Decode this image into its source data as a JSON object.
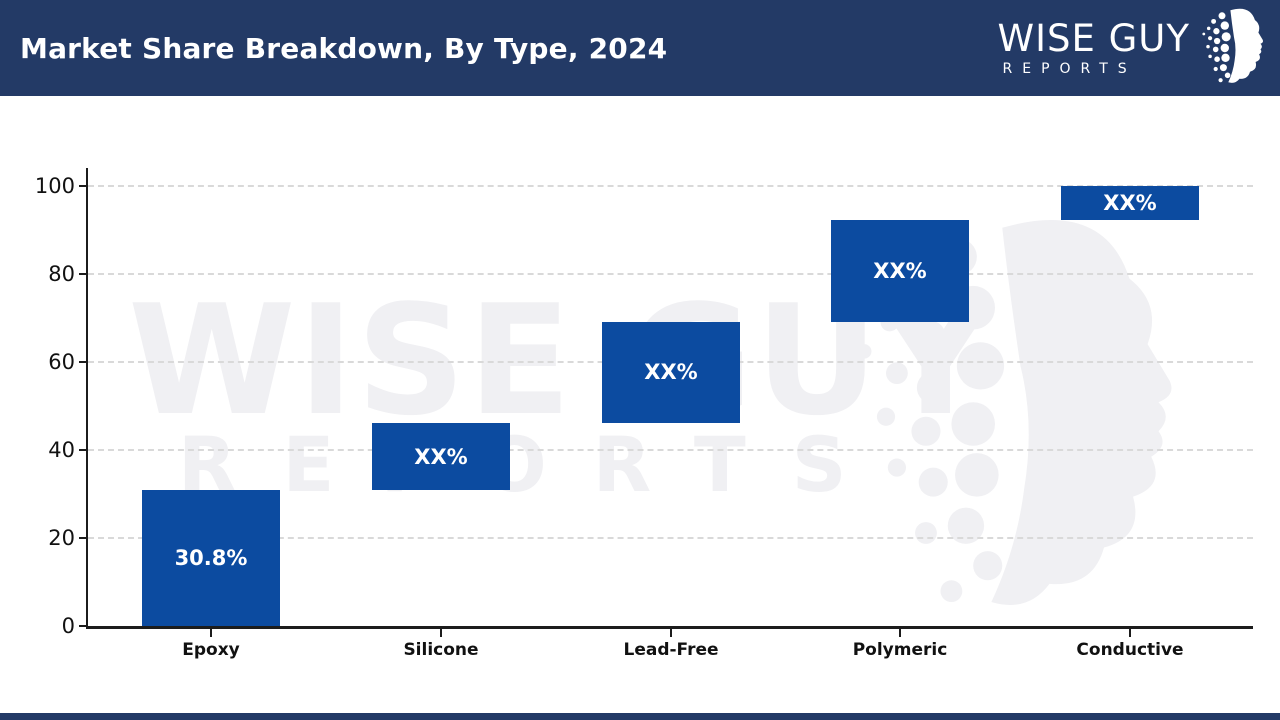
{
  "header": {
    "title": "Market Share Breakdown, By Type, 2024",
    "logo": {
      "wordmark": "WISE GUY",
      "subtitle": "REPORTS"
    }
  },
  "watermark": {
    "wordmark": "WISE GUY",
    "subtitle": "REPORTS"
  },
  "colors": {
    "header_bg": "#233a66",
    "footer_bg": "#233a66",
    "bar_fill": "#0c4ba0",
    "bar_label_text": "#ffffff",
    "grid_line": "#d9d9d9",
    "axis_line": "#1c1c1c",
    "tick_label_text": "#111111",
    "watermark": "#f0f0f3",
    "title_text": "#ffffff"
  },
  "chart_data": {
    "type": "bar",
    "subtype": "floating-segment-waterfall",
    "title": "Market Share Breakdown, By Type, 2024",
    "categories": [
      "Epoxy",
      "Silicone",
      "Lead-Free",
      "Polymeric",
      "Conductive"
    ],
    "segments": [
      {
        "category": "Epoxy",
        "start": 0,
        "end": 30.8,
        "value": 30.8,
        "label": "30.8%"
      },
      {
        "category": "Silicone",
        "start": 30.8,
        "end": 46.2,
        "value": 15.4,
        "label": "XX%"
      },
      {
        "category": "Lead-Free",
        "start": 46.2,
        "end": 69.2,
        "value": 23.0,
        "label": "XX%"
      },
      {
        "category": "Polymeric",
        "start": 69.2,
        "end": 92.3,
        "value": 23.1,
        "label": "XX%"
      },
      {
        "category": "Conductive",
        "start": 92.3,
        "end": 100,
        "value": 7.7,
        "label": "XX%"
      }
    ],
    "yticks": [
      0,
      20,
      40,
      60,
      80,
      100
    ],
    "ylim": [
      0,
      100
    ],
    "xlabel": "",
    "ylabel": "",
    "grid": "dashed-horizontal",
    "legend": "none"
  }
}
